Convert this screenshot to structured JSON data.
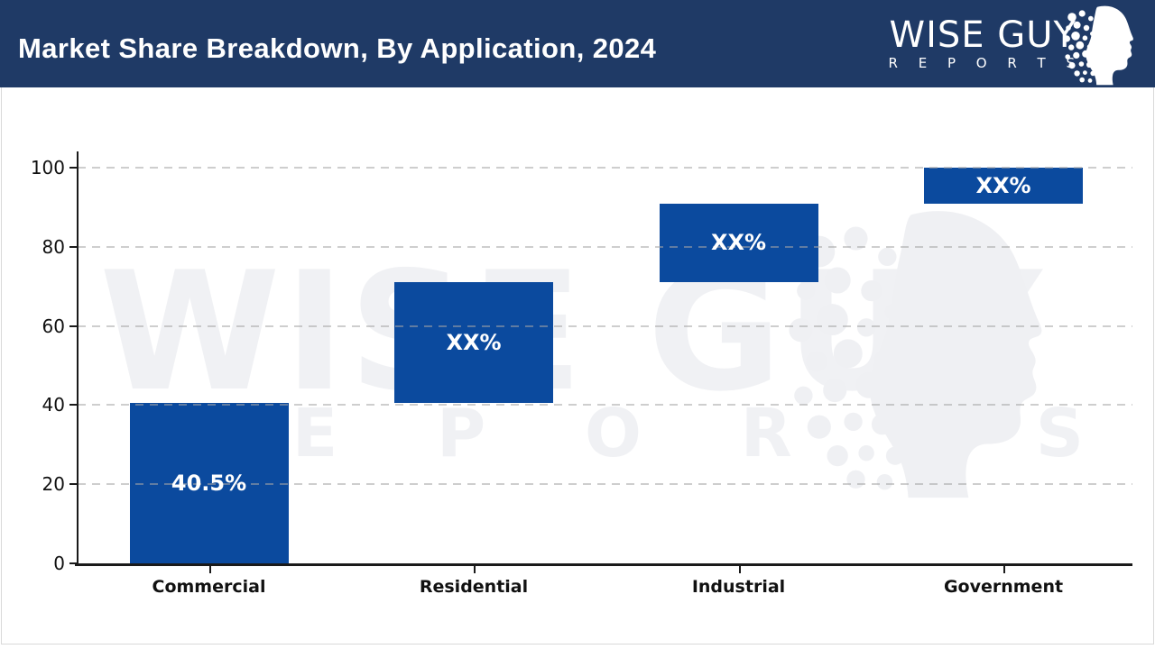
{
  "header": {
    "title": "Market Share Breakdown, By Application, 2024",
    "logo_line1": "WISE GUY",
    "logo_line2": "REPORTS"
  },
  "watermark": {
    "line1": "WISE GUY",
    "line2": "R E P O R T S"
  },
  "chart_data": {
    "type": "bar",
    "variant": "waterfall",
    "title": "Market Share Breakdown, By Application, 2024",
    "categories": [
      "Commercial",
      "Residential",
      "Industrial",
      "Government"
    ],
    "segments": [
      {
        "category": "Commercial",
        "start": 0,
        "end": 40.5,
        "label": "40.5%"
      },
      {
        "category": "Residential",
        "start": 40.5,
        "end": 71,
        "label": "XX%"
      },
      {
        "category": "Industrial",
        "start": 71,
        "end": 91,
        "label": "XX%"
      },
      {
        "category": "Government",
        "start": 91,
        "end": 100,
        "label": "XX%"
      }
    ],
    "yticks": [
      0,
      20,
      40,
      60,
      80,
      100
    ],
    "ylim": [
      0,
      104
    ],
    "xlabel": "",
    "ylabel": "",
    "grid": "horizontal-dashed",
    "legend": "none",
    "bar_color": "#0b4a9e",
    "bar_label_color": "#ffffff"
  },
  "colors": {
    "header_bg": "#1f3a66",
    "bar": "#0b4a9e",
    "axis": "#1a1a1a",
    "grid": "#b5b5b5",
    "watermark": "#f0f1f4"
  }
}
